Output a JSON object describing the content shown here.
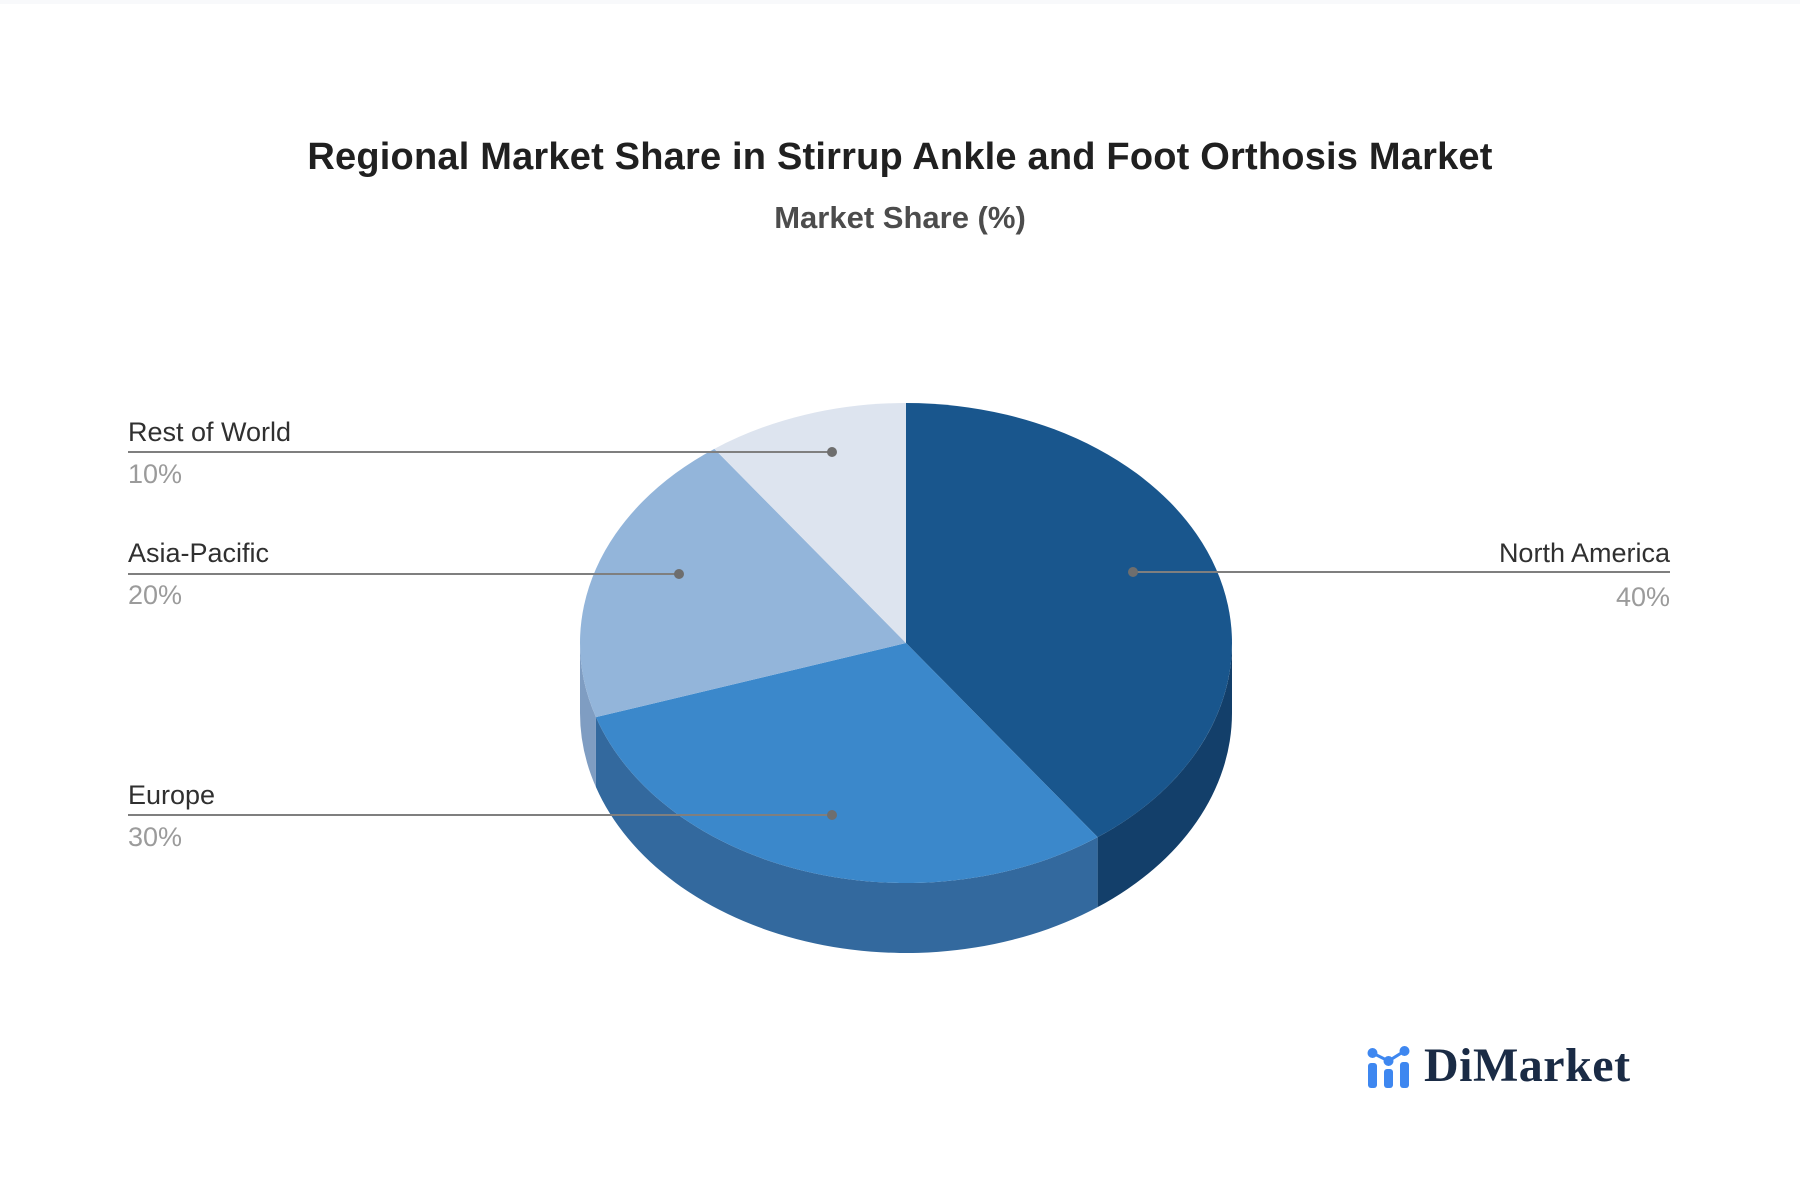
{
  "header": {
    "title": "Regional Market Share in Stirrup Ankle and Foot Orthosis Market",
    "subtitle": "Market Share (%)"
  },
  "chart_data": {
    "type": "pie",
    "title": "Regional Market Share in Stirrup Ankle and Foot Orthosis Market",
    "subtitle": "Market Share (%)",
    "unit": "%",
    "effect_3d": true,
    "direction": "clockwise",
    "start_angle_deg": 0,
    "categories": [
      "North America",
      "Europe",
      "Asia-Pacific",
      "Rest of World"
    ],
    "values": [
      40,
      30,
      20,
      10
    ],
    "value_labels": [
      "40%",
      "30%",
      "20%",
      "10%"
    ],
    "colors": [
      "#19568d",
      "#3b88cb",
      "#93b5da",
      "#dde4ef"
    ],
    "side_colors": [
      "#133f6a",
      "#33699e",
      "#7f9dc2",
      "#c5cfdf"
    ],
    "leader_line_color": "#7f7f7f",
    "label_color": "#303030",
    "value_color": "#9b9b9b"
  },
  "logo": {
    "text": "DiMarket",
    "icon": "bar-line-chart-icon",
    "icon_color": "#3e87f0",
    "text_color": "#1a2b45"
  }
}
